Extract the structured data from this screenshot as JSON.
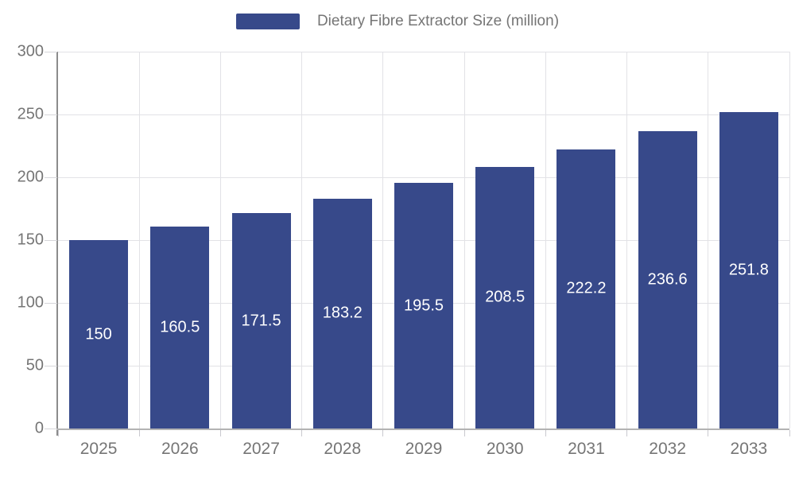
{
  "chart_data": {
    "type": "bar",
    "title": "",
    "legend": "Dietary Fibre Extractor Size (million)",
    "legend_position": "top-center",
    "categories": [
      "2025",
      "2026",
      "2027",
      "2028",
      "2029",
      "2030",
      "2031",
      "2032",
      "2033"
    ],
    "values": [
      150,
      160.5,
      171.5,
      183.2,
      195.5,
      208.5,
      222.2,
      236.6,
      251.8
    ],
    "xlabel": "",
    "ylabel": "",
    "ylim": [
      0,
      300
    ],
    "yticks": [
      0,
      50,
      100,
      150,
      200,
      250,
      300
    ],
    "grid": true,
    "value_labels_shown": true,
    "value_label_position": "center-of-bar"
  },
  "colors": {
    "bar": "#37498a",
    "value_label": "#ffffff",
    "axis_text": "#757575",
    "grid": "#e2e2e6",
    "y_axis_line": "#8c8c8c",
    "x_axis_line": "#b3b3b3",
    "background": "#ffffff"
  }
}
